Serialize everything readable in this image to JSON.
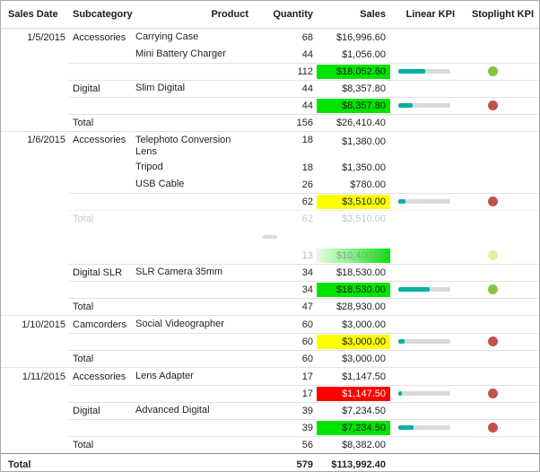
{
  "table": {
    "columns": [
      "Sales Date",
      "Subcategory",
      "Product",
      "Quantity",
      "Sales",
      "Linear KPI",
      "Stoplight KPI"
    ],
    "rows": [
      {
        "type": "detail",
        "date": "1/5/2015",
        "subcategory": "Accessories",
        "product": "Carrying Case",
        "quantity": "68",
        "sales": "$16,996.60"
      },
      {
        "type": "detail",
        "product": "Mini Battery Charger",
        "quantity": "44",
        "sales": "$1,056.00"
      },
      {
        "type": "subtotal",
        "quantity": "112",
        "sales": "$18,052.60",
        "sales_style": "green",
        "bar": 0.52,
        "dot": "green",
        "line_top": true
      },
      {
        "type": "detail",
        "subcategory": "Digital",
        "product": "Slim Digital",
        "quantity": "44",
        "sales": "$8,357.80",
        "line_top": true
      },
      {
        "type": "subtotal",
        "quantity": "44",
        "sales": "$8,357.80",
        "sales_style": "green",
        "bar": 0.28,
        "dot": "red",
        "line_top": true
      },
      {
        "type": "total",
        "subcategory": "Total",
        "quantity": "156",
        "sales": "$26,410.40",
        "line_top": true,
        "group_end": true
      },
      {
        "type": "detail",
        "tall": true,
        "date": "1/6/2015",
        "subcategory": "Accessories",
        "product": "Telephoto Conversion Lens",
        "quantity": "18",
        "sales": "$1,380.00"
      },
      {
        "type": "detail",
        "product": "Tripod",
        "quantity": "18",
        "sales": "$1,350.00"
      },
      {
        "type": "detail",
        "product": "USB Cable",
        "quantity": "26",
        "sales": "$780.00"
      },
      {
        "type": "subtotal",
        "quantity": "62",
        "sales": "$3,510.00",
        "sales_style": "yellow",
        "bar": 0.13,
        "dot": "red",
        "line_top": true
      },
      {
        "type": "total",
        "faded": true,
        "subcategory": "Total",
        "quantity": "62",
        "sales": "$3,510.00",
        "line_top": true
      },
      {
        "type": "spacer"
      },
      {
        "type": "subtotal",
        "faded_qty": true,
        "quantity": "13",
        "sales": "$10,400.00",
        "sales_style": "gradient",
        "dot": "yellow",
        "dot_faded": true
      },
      {
        "type": "detail",
        "subcategory": "Digital SLR",
        "product": "SLR Camera 35mm",
        "quantity": "34",
        "sales": "$18,530.00",
        "line_top": true
      },
      {
        "type": "subtotal",
        "quantity": "34",
        "sales": "$18,530.00",
        "sales_style": "green",
        "bar": 0.6,
        "dot": "green",
        "line_top": true
      },
      {
        "type": "total",
        "subcategory": "Total",
        "quantity": "47",
        "sales": "$28,930.00",
        "line_top": true,
        "group_end": true
      },
      {
        "type": "detail",
        "date": "1/10/2015",
        "subcategory": "Camcorders",
        "product": "Social Videographer",
        "quantity": "60",
        "sales": "$3,000.00"
      },
      {
        "type": "subtotal",
        "quantity": "60",
        "sales": "$3,000.00",
        "sales_style": "yellow",
        "bar": 0.12,
        "dot": "red",
        "line_top": true
      },
      {
        "type": "total",
        "subcategory": "Total",
        "quantity": "60",
        "sales": "$3,000.00",
        "line_top": true,
        "group_end": true
      },
      {
        "type": "detail",
        "date": "1/11/2015",
        "subcategory": "Accessories",
        "product": "Lens Adapter",
        "quantity": "17",
        "sales": "$1,147.50"
      },
      {
        "type": "subtotal",
        "quantity": "17",
        "sales": "$1,147.50",
        "sales_style": "red",
        "bar": 0.07,
        "dot": "red",
        "line_top": true
      },
      {
        "type": "detail",
        "subcategory": "Digital",
        "product": "Advanced Digital",
        "quantity": "39",
        "sales": "$7,234.50",
        "line_top": true
      },
      {
        "type": "subtotal",
        "quantity": "39",
        "sales": "$7,234.50",
        "sales_style": "green",
        "bar": 0.3,
        "dot": "red",
        "line_top": true
      },
      {
        "type": "total",
        "subcategory": "Total",
        "quantity": "56",
        "sales": "$8,382.00",
        "line_top": true
      },
      {
        "type": "grand",
        "date": "Total",
        "quantity": "579",
        "sales": "$113,992.40"
      }
    ]
  },
  "colors": {
    "kpi_green": "#00e400",
    "kpi_yellow": "#ffff00",
    "kpi_red": "#ff0000",
    "bar_fill": "#00b0a2",
    "bar_track": "#d9d9d9",
    "dot_green": "#84c441",
    "dot_red": "#c4504a",
    "dot_yellow": "#e3e381"
  }
}
